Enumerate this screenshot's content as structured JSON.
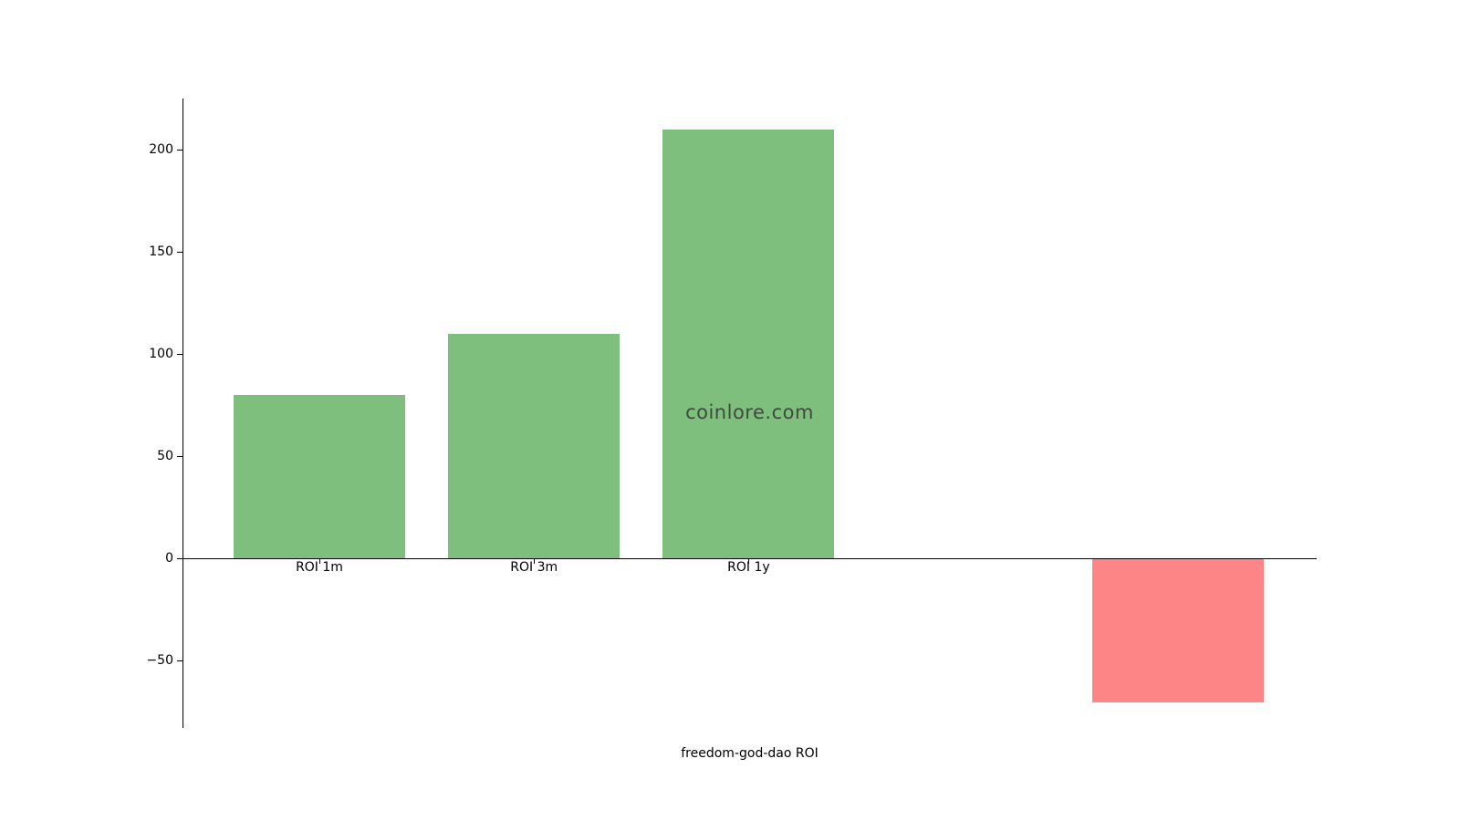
{
  "page": {
    "background": "#ffffff"
  },
  "watermark": {
    "text": "coinlore.com",
    "color": "#3e4b3e"
  },
  "chart_data": {
    "type": "bar",
    "title": "freedom-god-dao ROI",
    "xlabel": "",
    "ylabel": "",
    "categories": [
      "ROI 1m",
      "ROI 3m",
      "ROI 1y",
      "",
      ""
    ],
    "values": [
      80,
      110,
      210,
      0,
      -70
    ],
    "bar_colors": [
      "#7ebf7d",
      "#7ebf7d",
      "#7ebf7d",
      "#7ebf7d",
      "#fd8585"
    ],
    "positive_color": "#7ebf7d",
    "negative_color": "#fd8585",
    "yticks": [
      200,
      150,
      100,
      50,
      0,
      -50
    ],
    "ylim": [
      -83,
      225
    ],
    "grid": false,
    "legend": null,
    "axis_color": "#000000"
  }
}
